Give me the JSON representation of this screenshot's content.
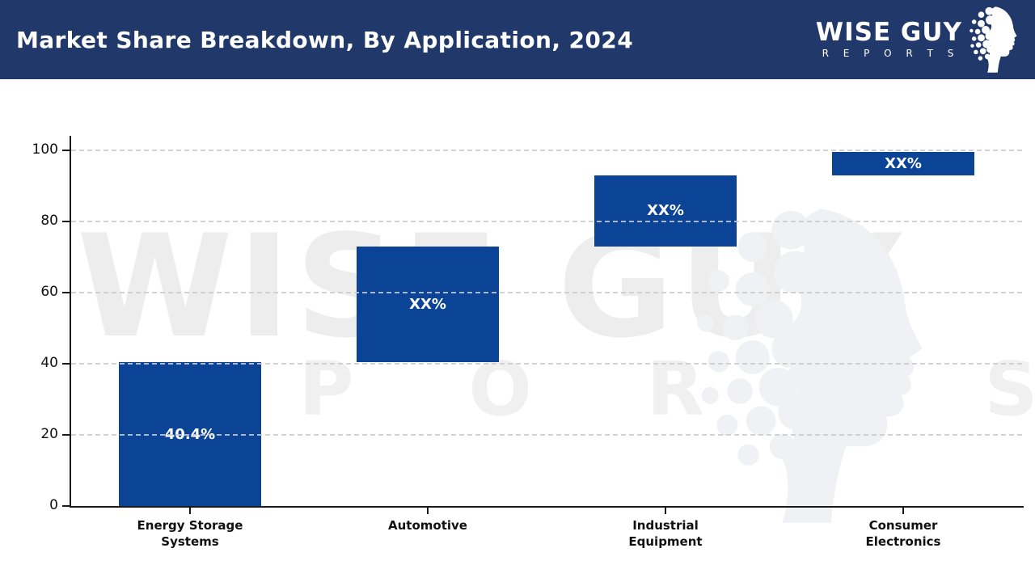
{
  "header": {
    "title": "Market Share Breakdown, By Application, 2024",
    "brand": {
      "name_top": "WISE GUY",
      "name_bottom": "R E P O R T S"
    }
  },
  "watermark": {
    "text_top": "WISE GUY",
    "text_bottom": "P O R T S"
  },
  "colors": {
    "header_bg": "#21386b",
    "bar": "#0b4397",
    "bar_label": "#ffffff",
    "grid": "#cbcbcb",
    "axis": "#1a1a1a",
    "watermark": "#f0f1f4"
  },
  "chart_data": {
    "type": "bar",
    "subtype": "waterfall",
    "title": "Market Share Breakdown, By Application, 2024",
    "xlabel": "",
    "ylabel": "",
    "ylim": [
      0,
      104
    ],
    "yticks": [
      0,
      20,
      40,
      60,
      80,
      100
    ],
    "grid": "horizontal-dashed",
    "legend": "none",
    "categories": [
      "Energy Storage\nSystems",
      "Automotive",
      "Industrial\nEquipment",
      "Consumer\nElectronics"
    ],
    "segments": [
      {
        "category": "Energy Storage\nSystems",
        "start": 0,
        "end": 40.4,
        "label": "40.4%"
      },
      {
        "category": "Automotive",
        "start": 40.4,
        "end": 73,
        "label": "XX%"
      },
      {
        "category": "Industrial\nEquipment",
        "start": 73,
        "end": 93,
        "label": "XX%"
      },
      {
        "category": "Consumer\nElectronics",
        "start": 93,
        "end": 99.6,
        "label": "XX%"
      }
    ]
  }
}
